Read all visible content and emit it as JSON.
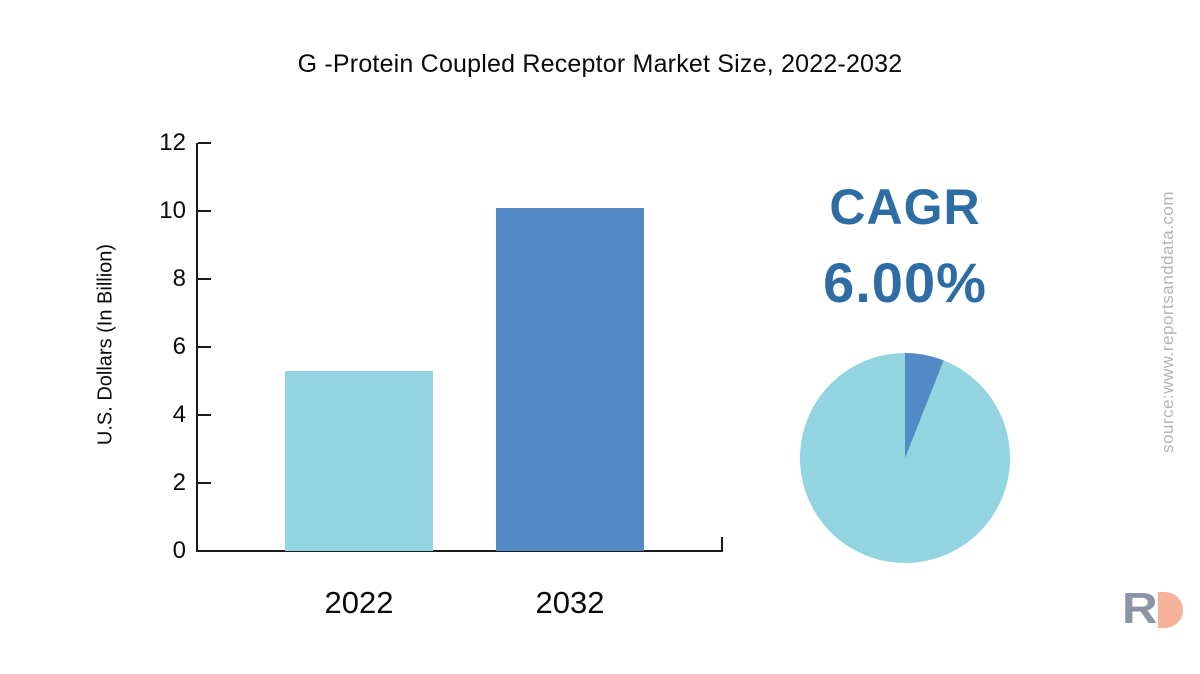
{
  "title": "G -Protein Coupled Receptor Market Size, 2022-2032",
  "chart_data": [
    {
      "type": "bar",
      "title": "G -Protein Coupled Receptor Market Size, 2022-2032",
      "categories": [
        "2022",
        "2032"
      ],
      "values": [
        5.3,
        10.1
      ],
      "xlabel": "",
      "ylabel": "U.S. Dollars (In Billion)",
      "ylim": [
        0,
        12
      ],
      "yticks": [
        0,
        2,
        4,
        6,
        8,
        10,
        12
      ],
      "bar_colors": [
        "#92d4e0",
        "#5389c5"
      ],
      "grid": false,
      "legend_position": "none"
    },
    {
      "type": "pie",
      "slices": [
        {
          "label": "CAGR highlight",
          "value": 6,
          "color": "#5389c5"
        },
        {
          "label": "remainder",
          "value": 94,
          "color": "#92d4e0"
        }
      ],
      "start_angle_deg": 0,
      "direction": "clockwise"
    }
  ],
  "annotations": {
    "cagr_label": "CAGR",
    "cagr_value": "6.00%",
    "accent_color": "#2e6da4"
  },
  "source": {
    "text": "source:www.reportsanddata.com"
  },
  "logo": {
    "letter": "R",
    "letter_color": "#8b93a4",
    "d_color": "#f5b199"
  },
  "colors": {
    "bar_2022": "#92d4e0",
    "bar_2032": "#5389c5",
    "axis": "#1a1a1a",
    "source_text": "#b4b4b4"
  }
}
